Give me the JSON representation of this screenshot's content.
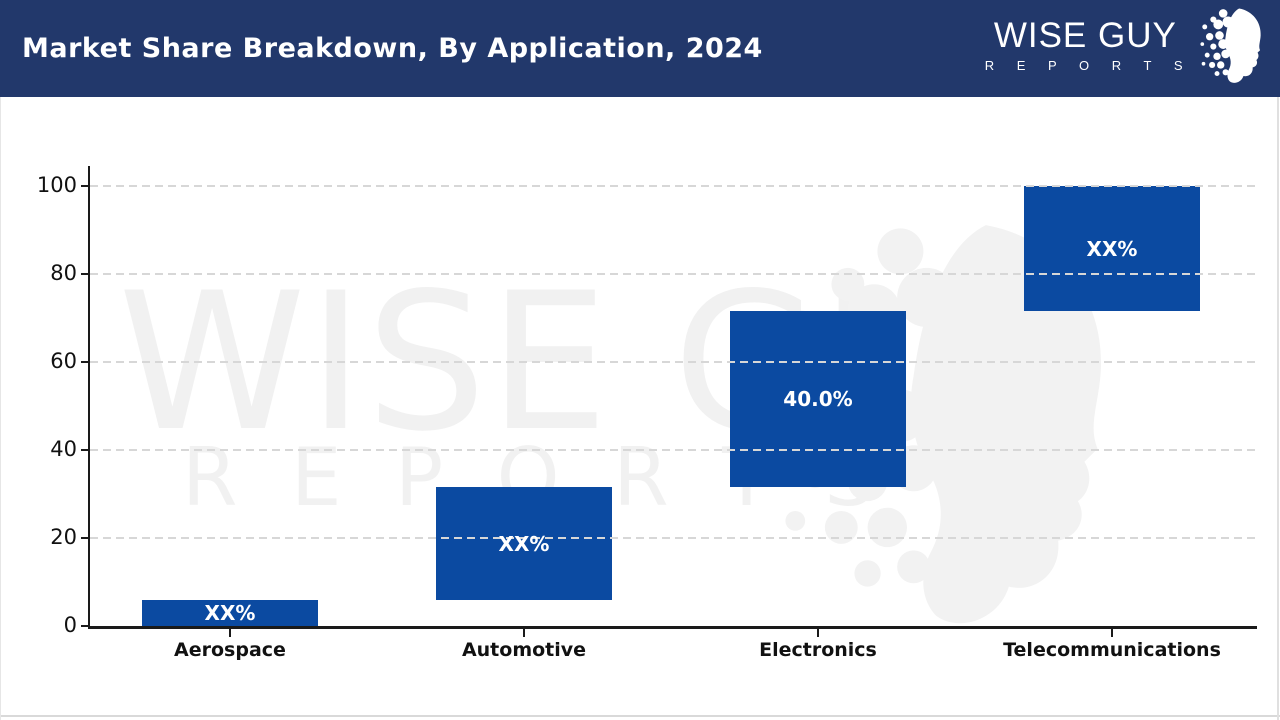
{
  "header": {
    "title": "Market Share Breakdown, By Application, 2024",
    "brand": {
      "line1": "WISE GUY",
      "line2": "R E P O R T S"
    }
  },
  "watermark": {
    "line1": "WISE GU",
    "line2": "R E P O R T S"
  },
  "colors": {
    "header_bg": "#22386b",
    "bar_blue": "#0b4aa1",
    "bar_label": "#ffffff",
    "gridline": "#d7d7d7",
    "axis": "#1a1a1a",
    "watermark_gray": "#f1f1f1"
  },
  "chart_data": {
    "type": "bar",
    "variant": "waterfall",
    "title": "Market Share Breakdown, By Application, 2024",
    "categories": [
      "Aerospace",
      "Automotive",
      "Electronics",
      "Telecommunications"
    ],
    "segments": [
      {
        "category": "Aerospace",
        "start": 0,
        "end": 5.8,
        "value_label": "XX%"
      },
      {
        "category": "Automotive",
        "start": 5.8,
        "end": 31.5,
        "value_label": "XX%"
      },
      {
        "category": "Electronics",
        "start": 31.5,
        "end": 71.5,
        "value_label": "40.0%"
      },
      {
        "category": "Telecommunications",
        "start": 71.5,
        "end": 100,
        "value_label": "XX%"
      }
    ],
    "yticks": [
      0,
      20,
      40,
      60,
      80,
      100
    ],
    "ylim": [
      0,
      105
    ],
    "xlabel": "",
    "ylabel": "",
    "grid": {
      "axis": "y",
      "style": "dashed",
      "drawn_above_bars": true
    },
    "legend": "none",
    "bar_color": "#0b4aa1",
    "bar_label_color": "#ffffff"
  }
}
